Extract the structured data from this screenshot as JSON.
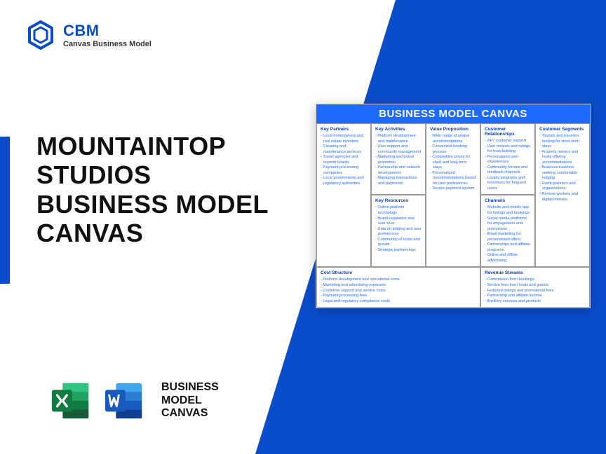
{
  "brand": {
    "name": "CBM",
    "tagline": "Canvas Business Model"
  },
  "title": "MOUNTAINTOP STUDIOS BUSINESS MODEL CANVAS",
  "footer_label": "BUSINESS MODEL CANVAS",
  "canvas": {
    "title": "BUSINESS MODEL CANVAS",
    "sections": {
      "key_partners": {
        "heading": "Key Partners",
        "items": [
          "Local homeowners and real estate investors",
          "Cleaning and maintenance services",
          "Travel agencies and tourism boards",
          "Payment processing companies",
          "Local governments and regulatory authorities"
        ]
      },
      "key_activities": {
        "heading": "Key Activities",
        "items": [
          "Platform development and maintenance",
          "User support and community management",
          "Marketing and brand promotion",
          "Partnership and network development",
          "Managing transactions and payments"
        ]
      },
      "value_proposition": {
        "heading": "Value Proposition",
        "items": [
          "Wide range of unique accommodations",
          "Convenient booking process",
          "Competitive prices for short and long-term stays",
          "Personalized recommendations based on user preferences",
          "Secure payment system"
        ]
      },
      "customer_relationships": {
        "heading": "Customer Relationships",
        "items": [
          "24/7 customer support",
          "User reviews and ratings for trust-building",
          "Personalized user experiences",
          "Community forums and feedback channels",
          "Loyalty programs and incentives for frequent users"
        ]
      },
      "customer_segments": {
        "heading": "Customer Segments",
        "items": [
          "Tourists and travelers looking for short-term stays",
          "Property owners and hosts offering accommodations",
          "Business travelers seeking comfortable lodging",
          "Event planners and organizations",
          "Remote workers and digital nomads"
        ]
      },
      "key_resources": {
        "heading": "Key Resources",
        "items": [
          "Online platform technology",
          "Brand reputation and user trust",
          "Data on lodging and user preferences",
          "Community of hosts and guests",
          "Strategic partnerships"
        ]
      },
      "channels": {
        "heading": "Channels",
        "items": [
          "Website and mobile app for listings and bookings",
          "Social media platforms for engagement and promotions",
          "Email marketing for personalized offers",
          "Partnerships and affiliate programs",
          "Online and offline advertising"
        ]
      },
      "cost_structure": {
        "heading": "Cost Structure",
        "items": [
          "Platform development and operational costs",
          "Marketing and advertising expenses",
          "Customer support and service costs",
          "Payment processing fees",
          "Legal and regulatory compliance costs"
        ]
      },
      "revenue_streams": {
        "heading": "Revenue Streams",
        "items": [
          "Commission from bookings",
          "Service fees from hosts and guests",
          "Featured listings and promotional fees",
          "Partnership and affiliate income",
          "Ancillary services and products"
        ]
      }
    }
  },
  "colors": {
    "primary": "#0a4dcc",
    "header": "#1f6bff",
    "excel": "#107c41",
    "word": "#2b579a"
  }
}
